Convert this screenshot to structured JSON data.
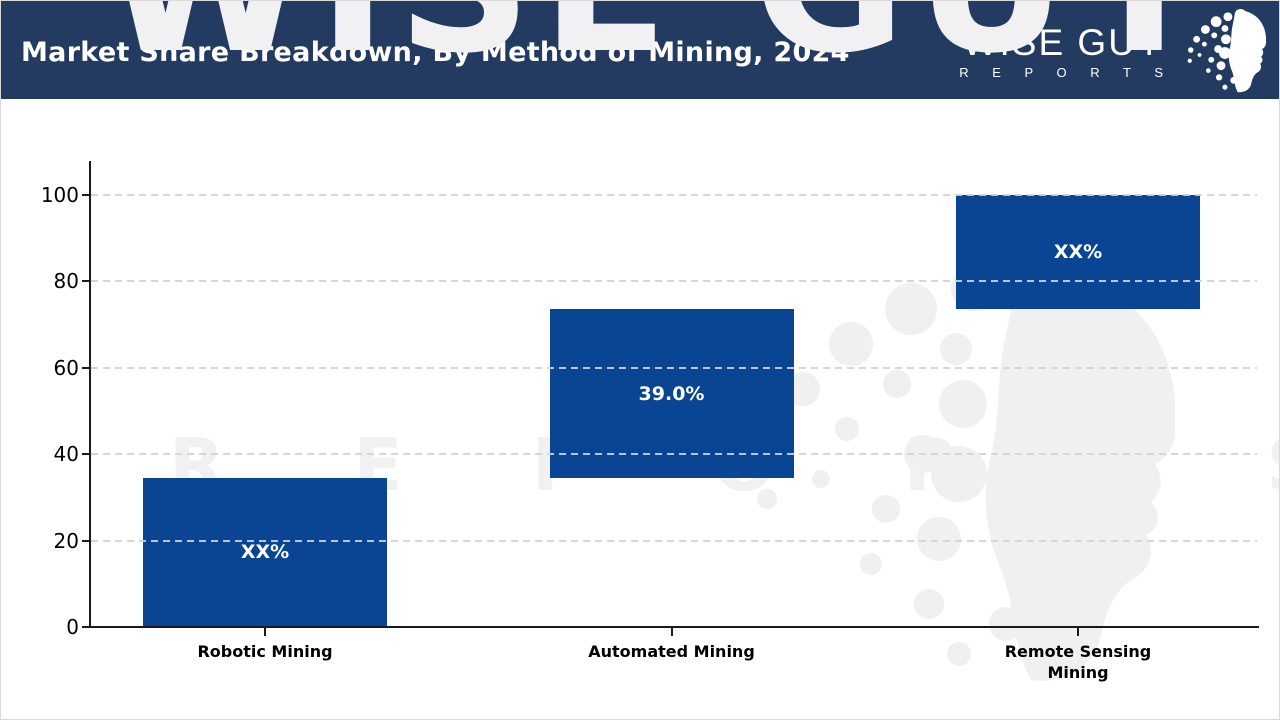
{
  "header": {
    "title": "Market Share Breakdown, By Method of Mining, 2024",
    "logo": {
      "line1": "WISE GUY",
      "line2": "R E P O R T S"
    }
  },
  "watermark": {
    "line1": "WISE GUY",
    "line2": "R E P O R T S"
  },
  "chart_data": {
    "type": "bar",
    "subtype": "waterfall-floating-bars",
    "title": "Market Share Breakdown, By Method of Mining, 2024",
    "categories": [
      [
        "Robotic Mining"
      ],
      [
        "Automated Mining"
      ],
      [
        "Remote Sensing",
        "Mining"
      ]
    ],
    "bars": [
      {
        "name": "Robotic Mining",
        "start": 0,
        "end": 34.5,
        "label": "XX%"
      },
      {
        "name": "Automated Mining",
        "start": 34.5,
        "end": 73.5,
        "label": "39.0%"
      },
      {
        "name": "Remote Sensing Mining",
        "start": 73.5,
        "end": 100,
        "label": "XX%"
      }
    ],
    "y_ticks": [
      0,
      20,
      40,
      60,
      80,
      100
    ],
    "ylim": [
      0,
      100
    ],
    "xlabel": "",
    "ylabel": "",
    "grid": "horizontal-dashed",
    "legend": "none",
    "bar_color": "#0a4593"
  },
  "colors": {
    "header_bg": "#233a61",
    "bar": "#0a4593",
    "watermark": "#f1f1f4",
    "gridline": "#d2d2d2",
    "axis": "#1a1a1a",
    "panel_border": "#d9d9d9"
  }
}
